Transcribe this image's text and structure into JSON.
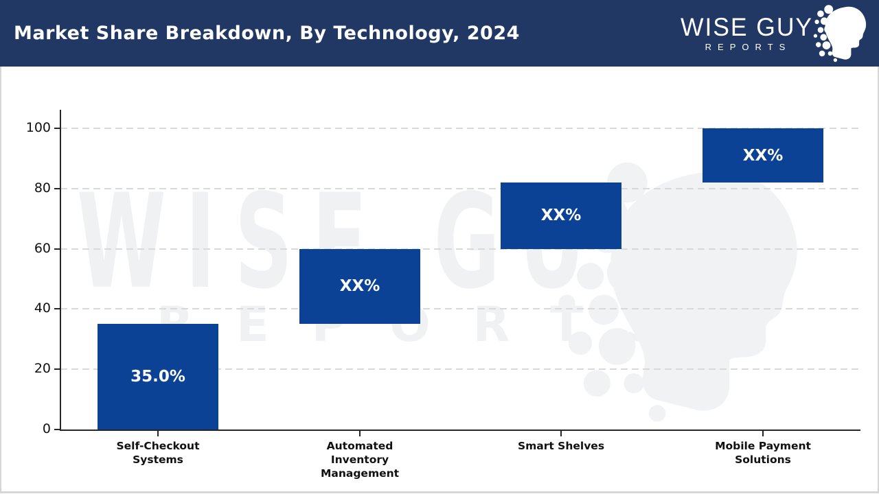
{
  "header": {
    "title": "Market Share Breakdown, By Technology, 2024",
    "logo": {
      "primary": "WISE GUY",
      "secondary": "REPORTS"
    }
  },
  "watermark": {
    "primary": "WISE GUY",
    "secondary": "REPORTS"
  },
  "colors": {
    "header_bg": "#213864",
    "bar": "#0b4295",
    "bar_label": "#ffffff",
    "gridline": "#d9d9d9",
    "axis": "#262626",
    "watermark": "#f0f1f3"
  },
  "chart_data": {
    "type": "bar",
    "subtype": "waterfall",
    "title": "Market Share Breakdown, By Technology, 2024",
    "categories": [
      "Self-Checkout Systems",
      "Automated Inventory Management",
      "Smart Shelves",
      "Mobile Payment Solutions"
    ],
    "category_lines": [
      [
        "Self-Checkout",
        "Systems"
      ],
      [
        "Automated",
        "Inventory",
        "Management"
      ],
      [
        "Smart Shelves"
      ],
      [
        "Mobile Payment",
        "Solutions"
      ]
    ],
    "segments": [
      {
        "category": "Self-Checkout Systems",
        "start": 0,
        "end": 35,
        "label": "35.0%"
      },
      {
        "category": "Automated Inventory Management",
        "start": 35,
        "end": 60,
        "label": "XX%"
      },
      {
        "category": "Smart Shelves",
        "start": 60,
        "end": 82,
        "label": "XX%"
      },
      {
        "category": "Mobile Payment Solutions",
        "start": 82,
        "end": 100,
        "label": "XX%"
      }
    ],
    "xlabel": "",
    "ylabel": "",
    "yticks": [
      0,
      20,
      40,
      60,
      80,
      100
    ],
    "ylim": [
      0,
      106
    ],
    "grid": "horizontal-dashed",
    "legend": "none"
  }
}
